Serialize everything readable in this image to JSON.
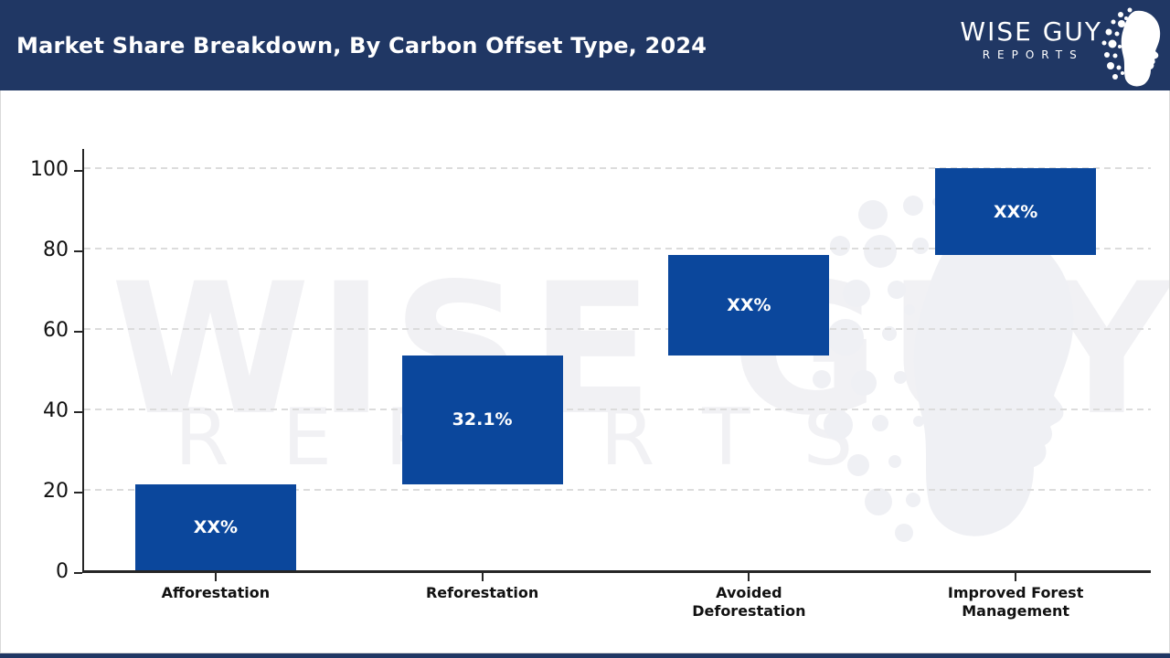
{
  "header": {
    "title": "Market Share Breakdown, By Carbon Offset Type, 2024",
    "logo": {
      "name": "WISE GUY",
      "subtitle": "REPORTS"
    }
  },
  "watermark": {
    "name": "WISE GUY",
    "subtitle": "REPORTS"
  },
  "chart_data": {
    "type": "bar",
    "variant": "waterfall",
    "title": "Market Share Breakdown, By Carbon Offset Type, 2024",
    "categories": [
      "Afforestation",
      "Reforestation",
      "Avoided Deforestation",
      "Improved Forest Management"
    ],
    "category_label_lines": [
      [
        "Afforestation"
      ],
      [
        "Reforestation"
      ],
      [
        "Avoided",
        "Deforestation"
      ],
      [
        "Improved Forest",
        "Management"
      ]
    ],
    "segments": [
      {
        "category": "Afforestation",
        "start": 0,
        "end": 21.4,
        "label": "XX%"
      },
      {
        "category": "Reforestation",
        "start": 21.4,
        "end": 53.5,
        "label": "32.1%"
      },
      {
        "category": "Avoided Deforestation",
        "start": 53.5,
        "end": 78.4,
        "label": "XX%"
      },
      {
        "category": "Improved Forest Management",
        "start": 78.4,
        "end": 100,
        "label": "XX%"
      }
    ],
    "ylim": [
      0,
      105
    ],
    "yticks": [
      0,
      20,
      40,
      60,
      80,
      100
    ],
    "ytick_labels": [
      "0",
      "20",
      "40",
      "60",
      "80",
      "100"
    ],
    "xlabel": "",
    "ylabel": "",
    "grid": "horizontal-dashed",
    "legend": "none",
    "colors": {
      "bar": "#0b479c",
      "bar_label": "#ffffff",
      "header_bg": "#203764",
      "axis": "#262626",
      "gridline": "#dcdcdc",
      "watermark": "#f1f1f4",
      "area_border": "#d9d9d9"
    }
  }
}
